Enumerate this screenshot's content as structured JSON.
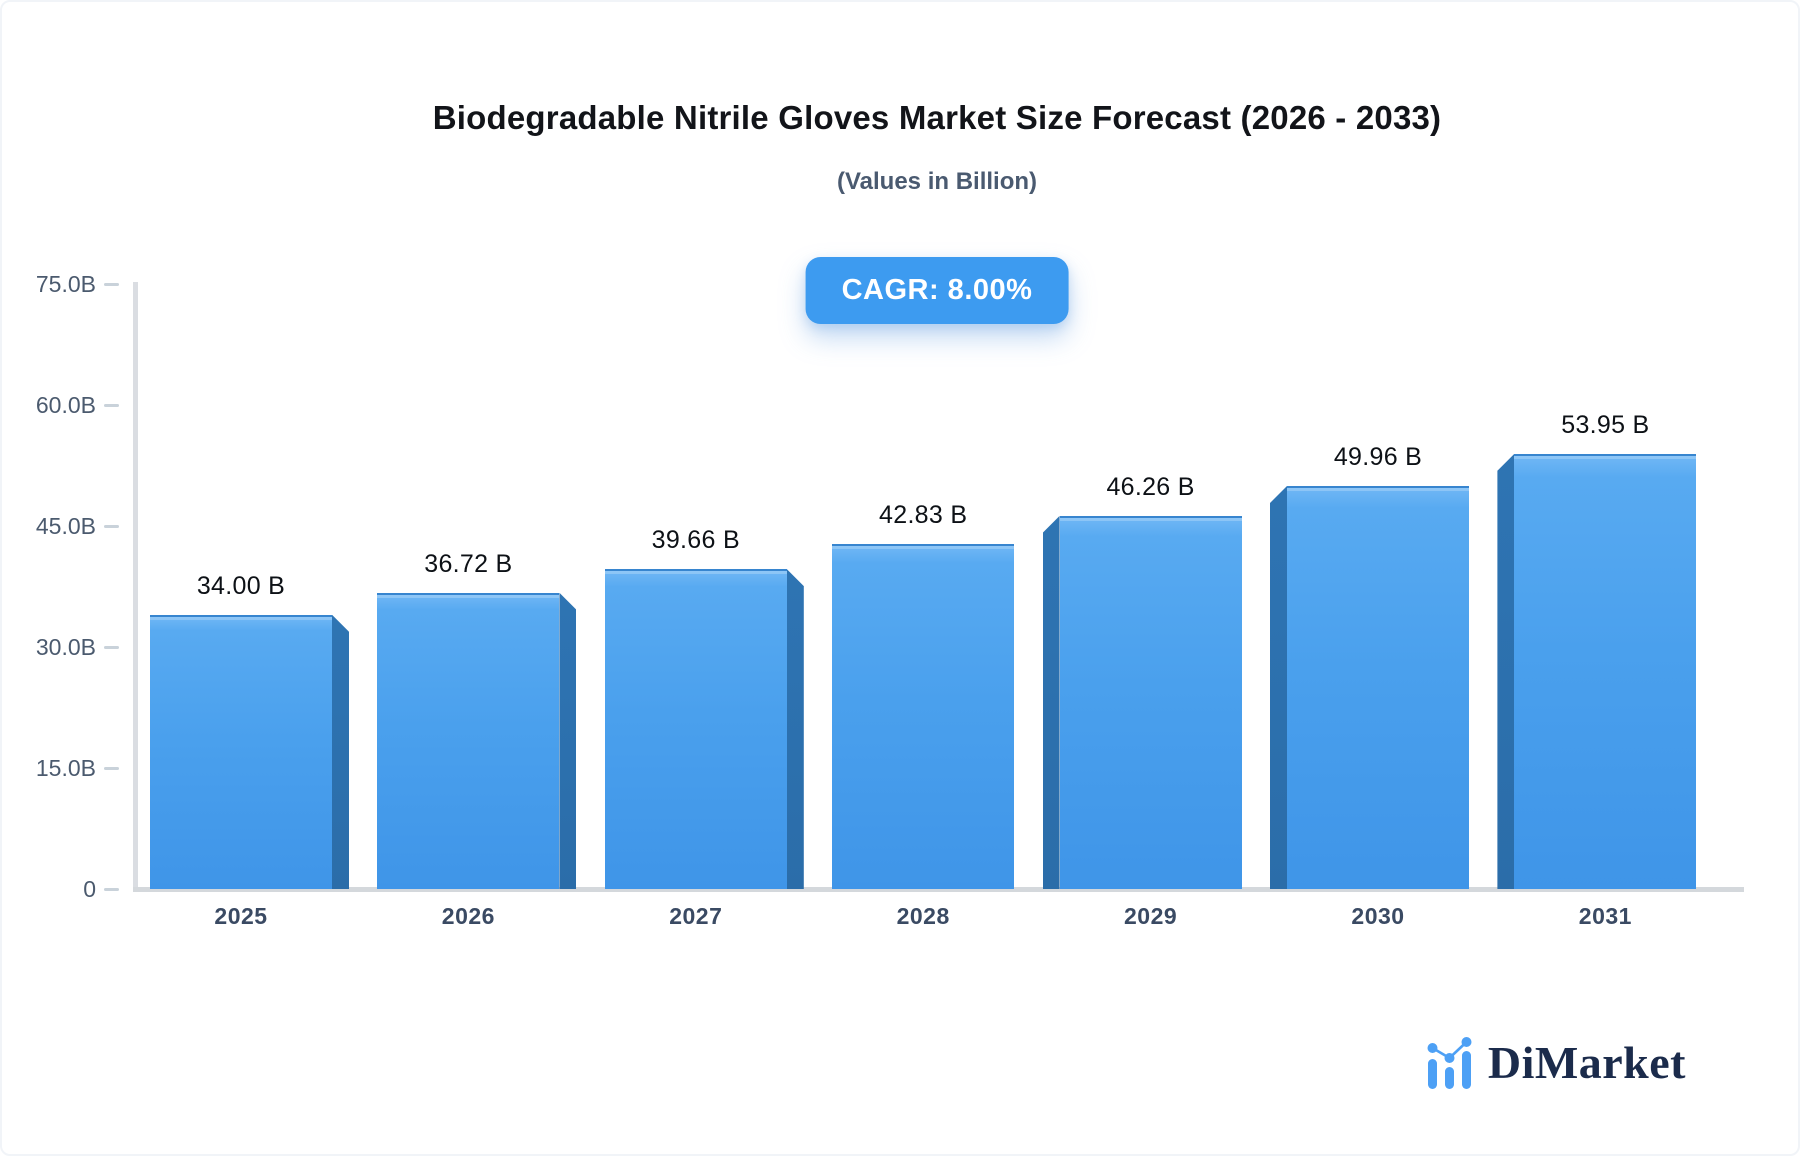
{
  "header": {
    "title": "Biodegradable Nitrile Gloves Market Size Forecast (2026 - 2033)",
    "subtitle": "(Values in Billion)",
    "cagr_label": "CAGR: 8.00%"
  },
  "branding": {
    "logo_text": "DiMarket",
    "logo_icon": "bar-chart-with-trendline"
  },
  "colors": {
    "bar_face": "#4aa0ed",
    "bar_face_light": "#70b7f5",
    "bar_side": "#2e74b3",
    "badge_bg": "#3d9bf0",
    "axis_line": "#d5d9dd",
    "tick_text": "#4b5a6e",
    "title_text": "#121419",
    "subtitle_text": "#4a5a70",
    "logo_blue": "#4da0f5",
    "logo_navy": "#1b2b4b"
  },
  "chart_data": {
    "type": "bar",
    "style": "3d-perspective-bars",
    "title": "Biodegradable Nitrile Gloves Market Size Forecast (2026 - 2033)",
    "subtitle": "(Values in Billion)",
    "annotation": "CAGR: 8.00%",
    "categories": [
      "2025",
      "2026",
      "2027",
      "2028",
      "2029",
      "2030",
      "2031"
    ],
    "values": [
      34.0,
      36.72,
      39.66,
      42.83,
      46.26,
      49.96,
      53.95
    ],
    "data_labels": [
      "34.00 B",
      "36.72 B",
      "39.66 B",
      "42.83 B",
      "46.26 B",
      "49.96 B",
      "53.95 B"
    ],
    "xlabel": "",
    "ylabel": "",
    "ylim": [
      0,
      75
    ],
    "yticks": [
      {
        "value": 0,
        "label": "0"
      },
      {
        "value": 15,
        "label": "15.0B"
      },
      {
        "value": 30,
        "label": "30.0B"
      },
      {
        "value": 45,
        "label": "45.0B"
      },
      {
        "value": 60,
        "label": "60.0B"
      },
      {
        "value": 75,
        "label": "75.0B"
      }
    ],
    "grid": false,
    "legend": false
  }
}
